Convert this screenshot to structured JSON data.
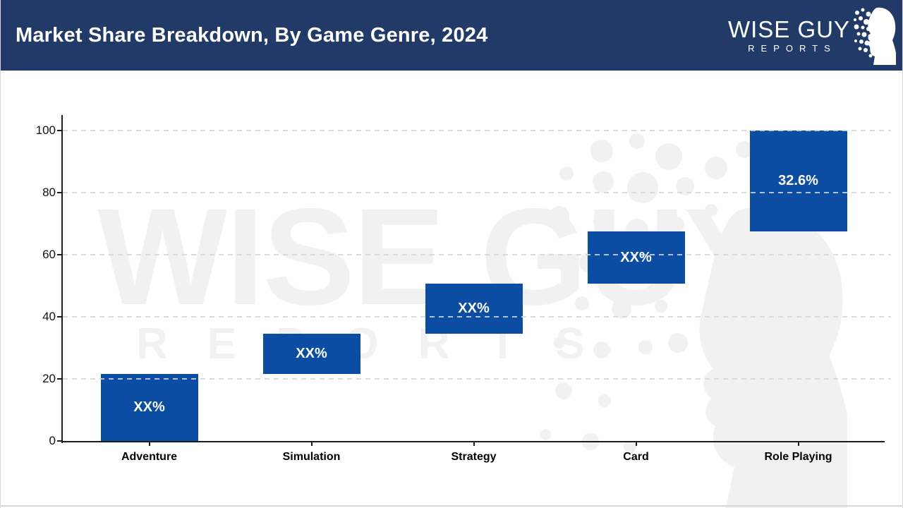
{
  "header": {
    "title": "Market Share Breakdown, By Game Genre, 2024",
    "logo": {
      "line1": "WISE GUY",
      "line2": "REPORTS"
    }
  },
  "watermark": {
    "line1": "WISE GUY",
    "line2": "REPORTS"
  },
  "colors": {
    "header_bg": "#213A68",
    "bar": "#0B4DA2",
    "axis": "#1c1c1c",
    "gridline": "#d5d5d5",
    "watermark": "#f1f1f1",
    "bar_label_text": "#ffffff",
    "frame_border": "#d9d9d9"
  },
  "chart_data": {
    "type": "bar",
    "variant": "waterfall",
    "title": "",
    "xlabel": "",
    "ylabel": "",
    "categories": [
      "Adventure",
      "Simulation",
      "Strategy",
      "Card",
      "Role Playing"
    ],
    "values": [
      21.7,
      12.8,
      16.2,
      16.7,
      32.6
    ],
    "bar_labels": [
      "XX%",
      "XX%",
      "XX%",
      "XX%",
      "32.6%"
    ],
    "cumulative_ranges": [
      [
        0,
        21.7
      ],
      [
        21.7,
        34.5
      ],
      [
        34.5,
        50.7
      ],
      [
        50.7,
        67.4
      ],
      [
        67.4,
        100
      ]
    ],
    "ylim": [
      0,
      105
    ],
    "yticks": [
      0,
      20,
      40,
      60,
      80,
      100
    ],
    "ytick_labels": [
      "0",
      "20",
      "40",
      "60",
      "80",
      "100"
    ],
    "grid": "dashed-horizontal-over-bars",
    "legend": "none",
    "bar_color": "#0B4DA2"
  }
}
